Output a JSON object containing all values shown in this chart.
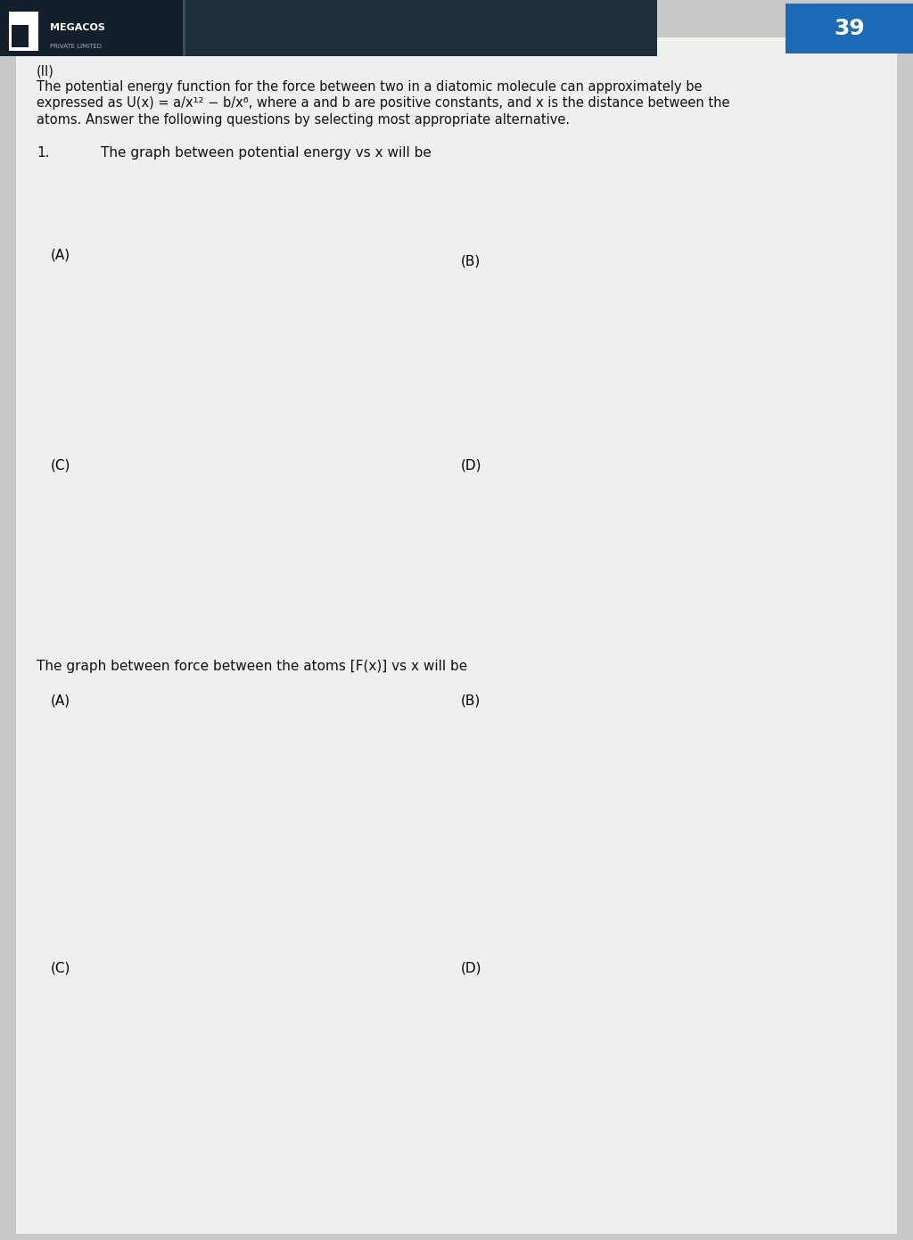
{
  "bg_color": "#c8c8c8",
  "page_color": "#efefed",
  "header_dark": "#1e2d3a",
  "header_mid": "#2e4050",
  "badge_color": "#1a6ab5",
  "curve_color": "#1a3080",
  "axis_color": "#111111",
  "text_color": "#111111",
  "badge_text": "39",
  "logo_text": "MEGACOS",
  "header_line1": "(II)",
  "header_line2": "The potential energy function for the force between two in a diatomic molecule can approximately be",
  "header_line3": "expressed as U(x) = a/x¹² − b/x⁶, where a and b are positive constants, and x is the distance between the",
  "header_line4": "atoms. Answer the following questions by selecting most appropriate alternative.",
  "q1_label": "1.",
  "q1_text": "The graph between potential energy vs x will be",
  "q2_text": "The graph between force between the atoms [F(x)] vs x will be",
  "font_size_body": 10.5,
  "font_size_badge": 18,
  "font_size_option": 11,
  "font_size_axis_label": 9.5
}
